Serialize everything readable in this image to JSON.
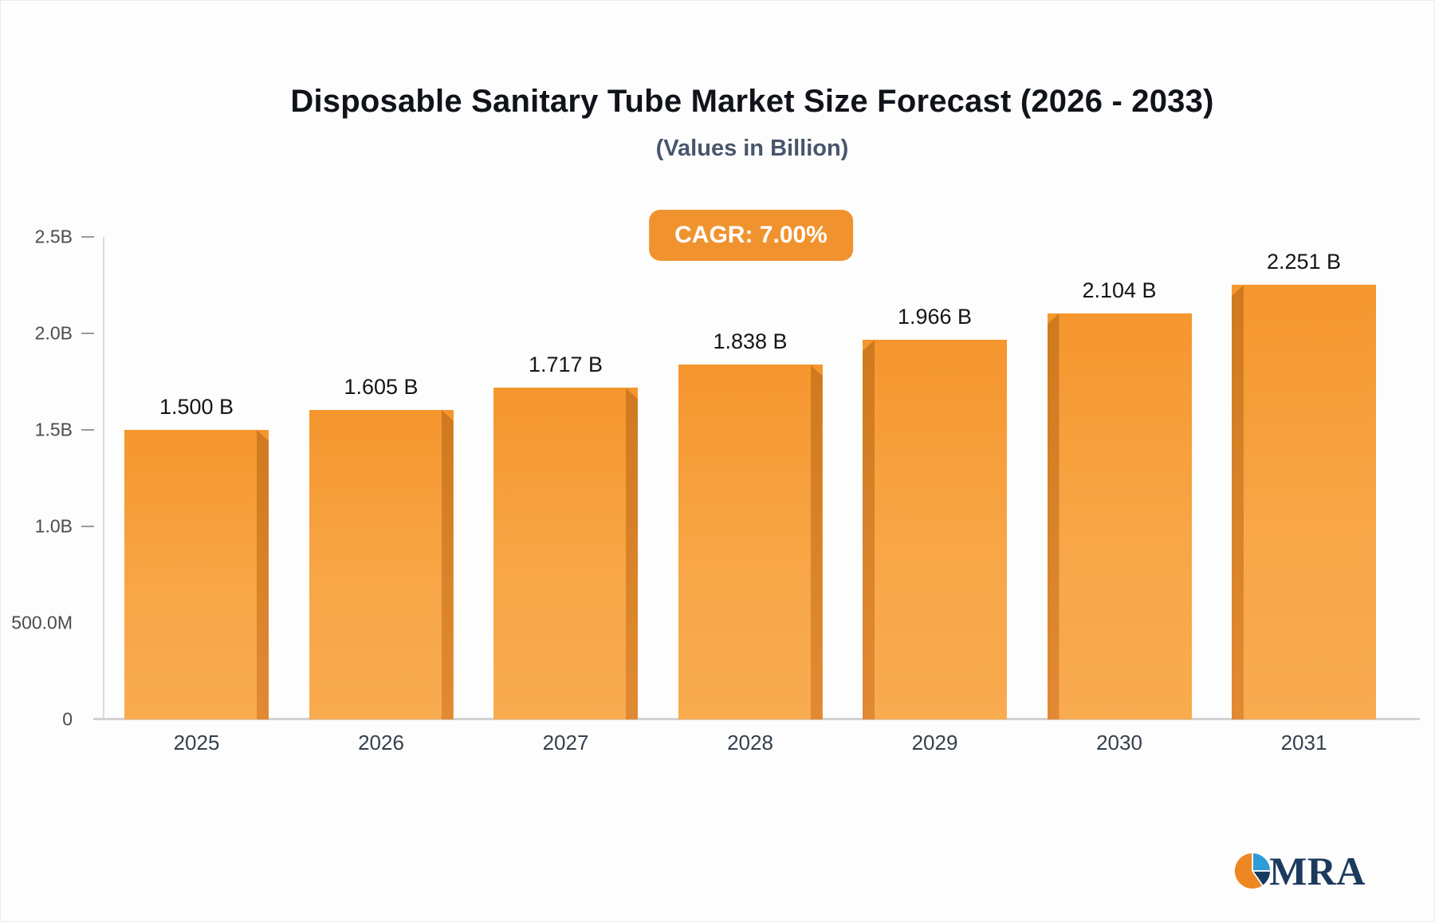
{
  "header": {
    "title": "Disposable Sanitary Tube Market Size Forecast (2026 - 2033)",
    "subtitle": "(Values in Billion)"
  },
  "badge": {
    "label": "CAGR: 7.00%"
  },
  "logo": {
    "text": "MRA"
  },
  "colors": {
    "bar_front": "#F79A34",
    "bar_side": "#D9771C",
    "badge_background": "#F0932F",
    "badge_text": "#FFFFFF",
    "axis": "#D2D2D2",
    "logo_navy": "#1C3A5E",
    "logo_blue": "#2F9CD8",
    "logo_orange": "#EE8722"
  },
  "chart_data": {
    "type": "bar",
    "title": "Disposable Sanitary Tube Market Size Forecast (2026 - 2033)",
    "subtitle": "(Values in Billion)",
    "annotation": "CAGR: 7.00%",
    "categories": [
      "2025",
      "2026",
      "2027",
      "2028",
      "2029",
      "2030",
      "2031"
    ],
    "values": [
      1.5,
      1.605,
      1.717,
      1.838,
      1.966,
      2.104,
      2.251
    ],
    "bar_labels": [
      "1.500 B",
      "1.605 B",
      "1.717 B",
      "1.838 B",
      "1.966 B",
      "2.104 B",
      "2.251 B"
    ],
    "unit": "Billion",
    "xlabel": "",
    "ylabel": "",
    "ylim": [
      0,
      2.5
    ],
    "yticks": [
      {
        "value": 2.5,
        "label": "2.5B"
      },
      {
        "value": 2.0,
        "label": "2.0B"
      },
      {
        "value": 1.5,
        "label": "1.5B"
      },
      {
        "value": 1.0,
        "label": "1.0B"
      },
      {
        "value": 0.5,
        "label": "500.0M"
      },
      {
        "value": 0,
        "label": "0"
      }
    ],
    "grid": false,
    "legend": null
  }
}
